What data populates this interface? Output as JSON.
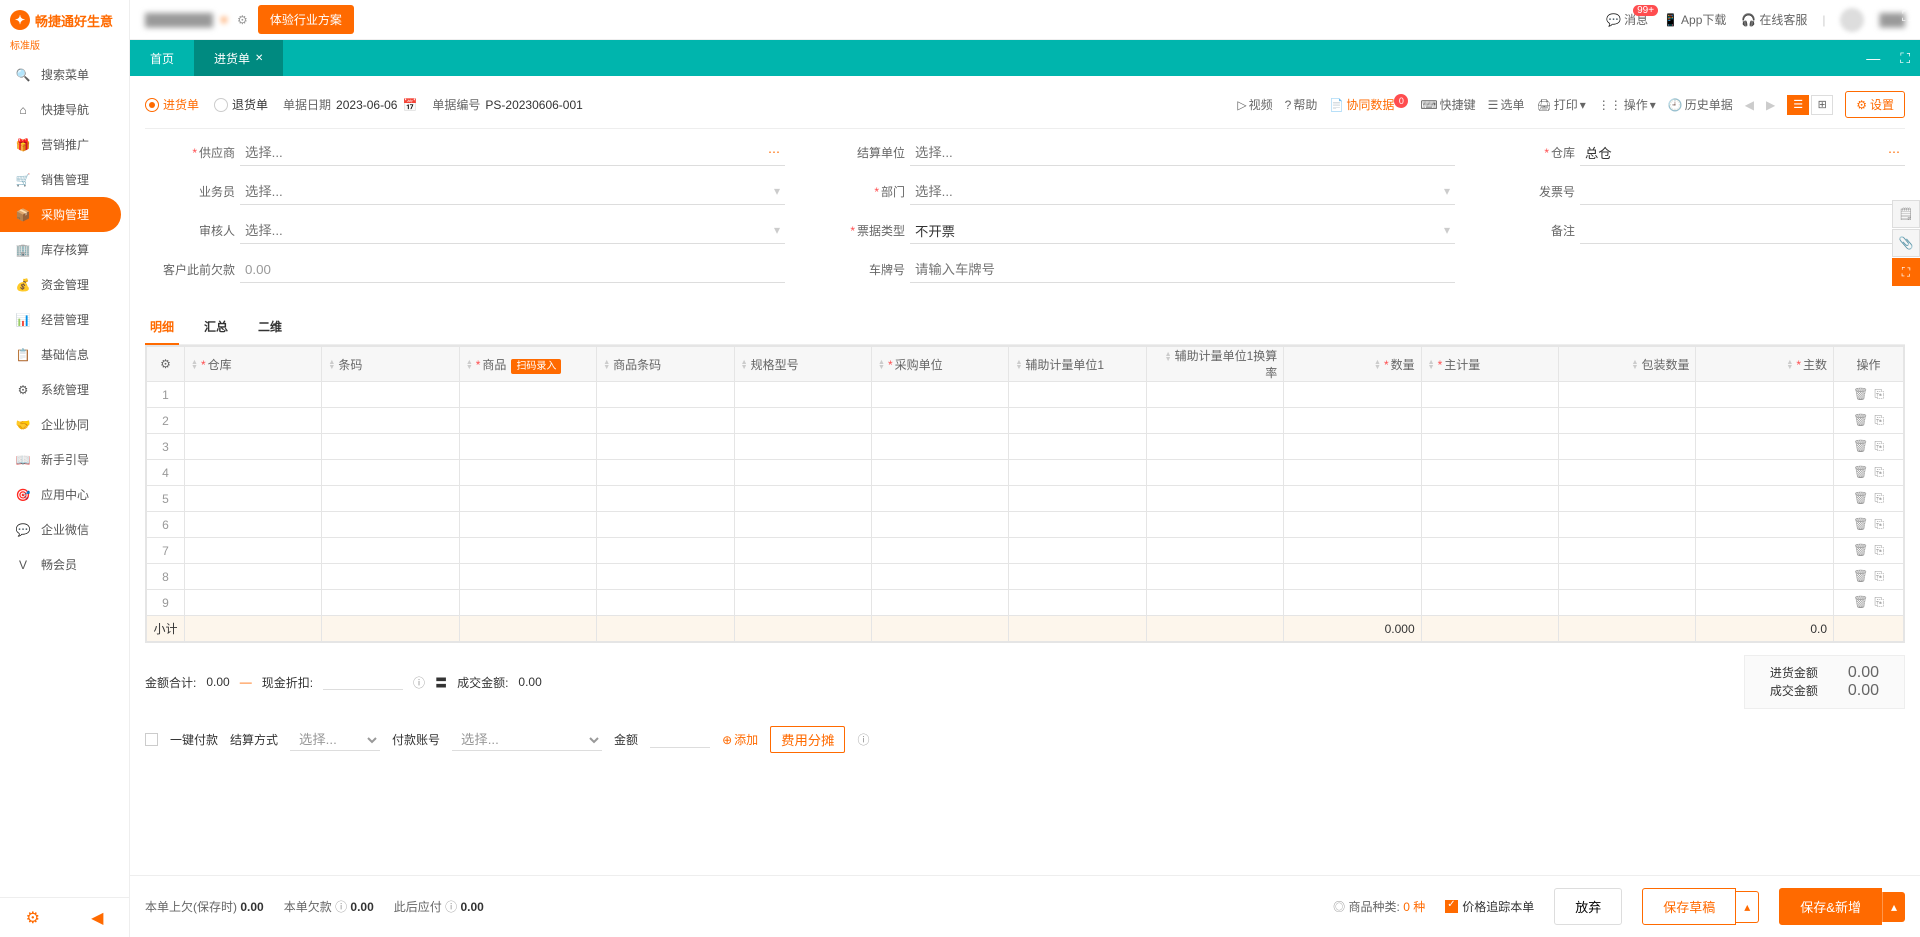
{
  "brand": {
    "name": "畅捷通好生意",
    "edition": "标准版"
  },
  "topbar": {
    "company": "████████",
    "try_btn": "体验行业方案",
    "messages": "消息",
    "messages_count": "99+",
    "app_download": "App下载",
    "online_service": "在线客服"
  },
  "sidebar": {
    "items": [
      {
        "icon": "🔍",
        "label": "搜索菜单"
      },
      {
        "icon": "⌂",
        "label": "快捷导航"
      },
      {
        "icon": "🎁",
        "label": "营销推广"
      },
      {
        "icon": "🛒",
        "label": "销售管理"
      },
      {
        "icon": "📦",
        "label": "采购管理",
        "active": true
      },
      {
        "icon": "🏢",
        "label": "库存核算"
      },
      {
        "icon": "💰",
        "label": "资金管理"
      },
      {
        "icon": "📊",
        "label": "经营管理"
      },
      {
        "icon": "📋",
        "label": "基础信息"
      },
      {
        "icon": "⚙",
        "label": "系统管理"
      },
      {
        "icon": "🤝",
        "label": "企业协同"
      },
      {
        "icon": "📖",
        "label": "新手引导"
      },
      {
        "icon": "🎯",
        "label": "应用中心"
      },
      {
        "icon": "💬",
        "label": "企业微信"
      },
      {
        "icon": "V",
        "label": "畅会员"
      }
    ]
  },
  "tabs": {
    "home": "首页",
    "current": "进货单"
  },
  "doc": {
    "type_in": "进货单",
    "type_out": "退货单",
    "date_label": "单据日期",
    "date_value": "2023-06-06",
    "no_label": "单据编号",
    "no_value": "PS-20230606-001",
    "actions": {
      "video": "视频",
      "help": "帮助",
      "collab": "协同数据",
      "collab_count": "0",
      "shortcut": "快捷键",
      "select": "选单",
      "print": "打印",
      "operate": "操作",
      "history": "历史单据"
    },
    "settings": "设置"
  },
  "form": {
    "supplier": {
      "label": "供应商",
      "placeholder": "选择..."
    },
    "settle_unit": {
      "label": "结算单位",
      "placeholder": "选择..."
    },
    "warehouse": {
      "label": "仓库",
      "value": "总仓"
    },
    "sales": {
      "label": "业务员",
      "placeholder": "选择..."
    },
    "dept": {
      "label": "部门",
      "placeholder": "选择..."
    },
    "invoice_no": {
      "label": "发票号"
    },
    "reviewer": {
      "label": "审核人",
      "placeholder": "选择..."
    },
    "invoice_type": {
      "label": "票据类型",
      "value": "不开票"
    },
    "remark": {
      "label": "备注"
    },
    "prev_debt": {
      "label": "客户此前欠款",
      "value": "0.00"
    },
    "plate": {
      "label": "车牌号",
      "placeholder": "请输入车牌号"
    }
  },
  "inner_tabs": {
    "detail": "明细",
    "summary": "汇总",
    "two_dim": "二维"
  },
  "table": {
    "headers": [
      "仓库",
      "条码",
      "商品",
      "商品条码",
      "规格型号",
      "采购单位",
      "辅助计量单位1",
      "辅助计量单位1换算率",
      "数量",
      "主计量",
      "包装数量",
      "主数"
    ],
    "required": [
      true,
      false,
      true,
      false,
      false,
      true,
      false,
      false,
      true,
      true,
      false,
      true
    ],
    "right_align": [
      false,
      false,
      false,
      false,
      false,
      false,
      false,
      true,
      true,
      false,
      true,
      true
    ],
    "scan_badge": "扫码录入",
    "op_header": "操作",
    "subtotal": "小计",
    "subtotal_qty": "0.000",
    "subtotal_main": "0.0",
    "row_count": 9
  },
  "totals": {
    "amount_label": "金额合计:",
    "amount_val": "0.00",
    "discount_label": "现金折扣:",
    "deal_label": "成交金额:",
    "deal_val": "0.00",
    "in_amount_label": "进货金额",
    "in_amount_val": "0.00",
    "deal_amount_label": "成交金额",
    "deal_amount_val": "0.00"
  },
  "payment": {
    "one_click": "一键付款",
    "method_label": "结算方式",
    "method_placeholder": "选择...",
    "account_label": "付款账号",
    "account_placeholder": "选择...",
    "amount_label": "金额",
    "add": "添加",
    "split": "费用分摊"
  },
  "footer": {
    "last_debt_label": "本单上欠(保存时)",
    "last_debt_val": "0.00",
    "this_debt_label": "本单欠款",
    "this_debt_val": "0.00",
    "after_pay_label": "此后应付",
    "after_pay_val": "0.00",
    "sku_label": "商品种类:",
    "sku_val": "0 种",
    "track_price": "价格追踪本单",
    "discard": "放弃",
    "draft": "保存草稿",
    "save_new": "保存&新增"
  }
}
